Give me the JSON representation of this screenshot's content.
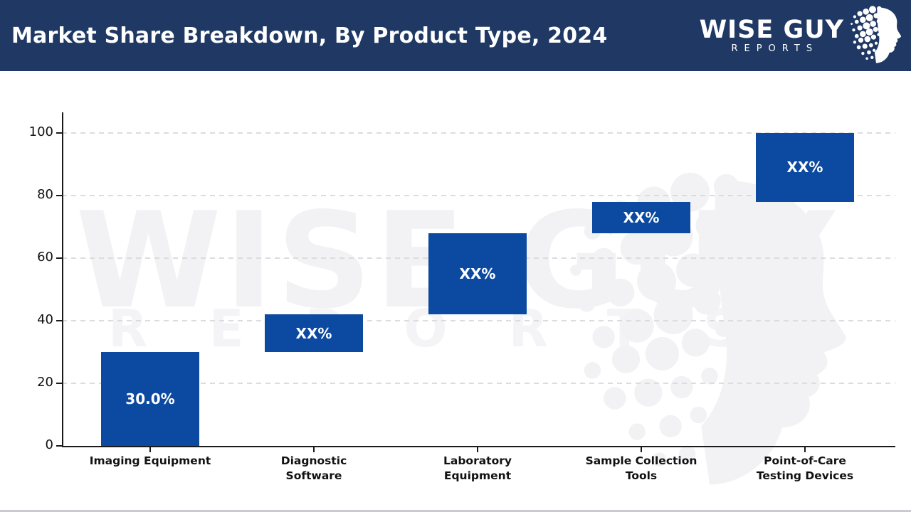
{
  "header": {
    "title": "Market Share Breakdown, By Product Type, 2024",
    "logo": {
      "line1": "WISE GUY",
      "line2": "REPORTS"
    }
  },
  "watermark": {
    "line1": "WISE GUY",
    "line2": "REPORTS"
  },
  "chart_data": {
    "type": "bar",
    "subtype": "waterfall",
    "title": "Market Share Breakdown, By Product Type, 2024",
    "categories": [
      "Imaging Equipment",
      "Diagnostic Software",
      "Laboratory Equipment",
      "Sample Collection Tools",
      "Point-of-Care Testing Devices"
    ],
    "category_label_lines": [
      [
        "Imaging Equipment"
      ],
      [
        "Diagnostic",
        "Software"
      ],
      [
        "Laboratory",
        "Equipment"
      ],
      [
        "Sample Collection",
        "Tools"
      ],
      [
        "Point-of-Care",
        "Testing Devices"
      ]
    ],
    "bars": [
      {
        "category": "Imaging Equipment",
        "start": 0,
        "end": 30,
        "segment_value": 30,
        "value_label": "30.0%"
      },
      {
        "category": "Diagnostic Software",
        "start": 30,
        "end": 42,
        "segment_value": 12,
        "value_label": "XX%"
      },
      {
        "category": "Laboratory Equipment",
        "start": 42,
        "end": 68,
        "segment_value": 26,
        "value_label": "XX%"
      },
      {
        "category": "Sample Collection Tools",
        "start": 68,
        "end": 78,
        "segment_value": 10,
        "value_label": "XX%"
      },
      {
        "category": "Point-of-Care Testing Devices",
        "start": 78,
        "end": 100,
        "segment_value": 22,
        "value_label": "XX%"
      }
    ],
    "y_ticks": [
      0,
      20,
      40,
      60,
      80,
      100
    ],
    "ylim": [
      0,
      105
    ],
    "xlabel": "",
    "ylabel": "",
    "grid": "horizontal dashed",
    "legend": "none",
    "bar_color": "#0b4aa0",
    "bar_label_color": "#ffffff"
  },
  "colors": {
    "header_bg": "#1f3864",
    "title_text": "#ffffff",
    "bar_fill": "#0b4aa0",
    "axis": "#1a1a1a",
    "gridline": "#dcdcdc",
    "watermark": "#f2f2f4"
  }
}
